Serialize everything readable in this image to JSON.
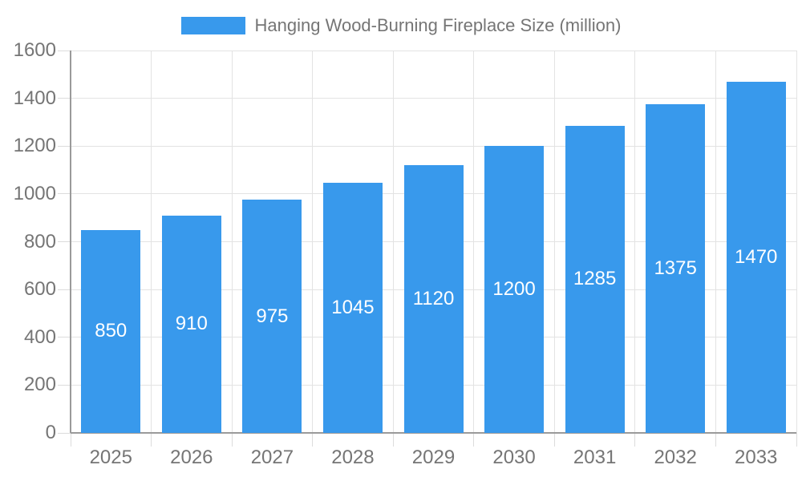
{
  "legend": {
    "label": "Hanging Wood-Burning Fireplace Size (million)"
  },
  "chart_data": {
    "type": "bar",
    "title": "Hanging Wood-Burning Fireplace Size (million)",
    "categories": [
      "2025",
      "2026",
      "2027",
      "2028",
      "2029",
      "2030",
      "2031",
      "2032",
      "2033"
    ],
    "values": [
      850,
      910,
      975,
      1045,
      1120,
      1200,
      1285,
      1375,
      1470
    ],
    "xlabel": "",
    "ylabel": "",
    "ylim": [
      0,
      1600
    ],
    "ytick_step": 200,
    "yticks": [
      0,
      200,
      400,
      600,
      800,
      1000,
      1200,
      1400,
      1600
    ],
    "grid": true,
    "legend_position": "top-center",
    "bar_labels_inside": true,
    "colors": {
      "bar": "#3899ec",
      "bar_value_text": "#ffffff",
      "axis_text": "#757575",
      "axis_line": "#9a9a9a",
      "gridline": "#e3e3e3",
      "background": "#ffffff"
    }
  }
}
